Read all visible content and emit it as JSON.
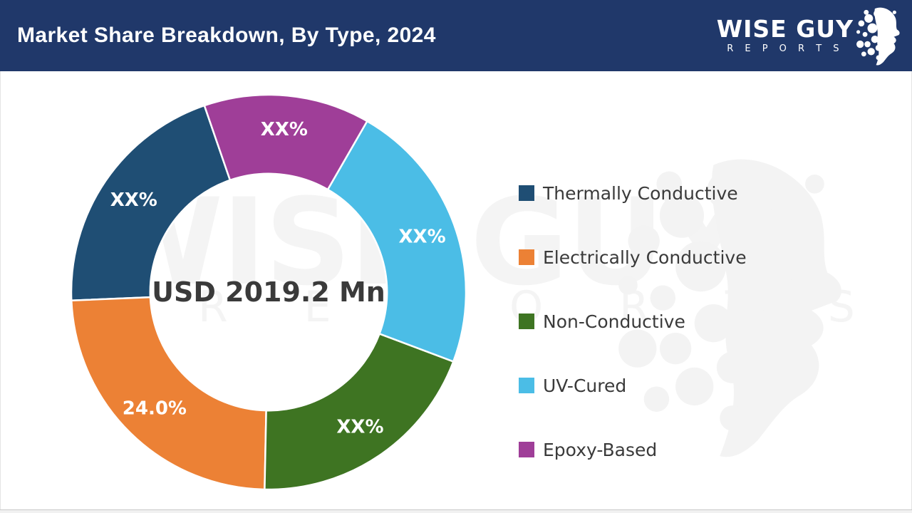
{
  "header": {
    "title": "Market Share Breakdown, By Type, 2024",
    "background_color": "#20386A",
    "logo": {
      "line1": "WISE GUY",
      "line2": "R E P O R T S",
      "icon": "face-dots-icon"
    }
  },
  "watermark": {
    "line1": "WISE GUY",
    "line2": "R E P O R T S",
    "icon": "face-dots-icon",
    "color": "#F4F4F4"
  },
  "chart_data": {
    "type": "pie",
    "subtype": "donut",
    "title": "Market Share Breakdown, By Type, 2024",
    "center_label": "USD 2019.2 Mn",
    "unit": "percent share",
    "start_angle_deg": 109,
    "direction": "counterclockwise",
    "inner_radius_ratio": 0.6,
    "legend_position": "right",
    "label_note": "all slice labels masked as XX% except Electrically Conductive which shows 24.0%",
    "segments": [
      {
        "label": "Thermally Conductive",
        "value_pct": 20.4,
        "displayed_label": "XX%",
        "color": "#1F4E74"
      },
      {
        "label": "Electrically Conductive",
        "value_pct": 24.0,
        "displayed_label": "24.0%",
        "color": "#EC8135"
      },
      {
        "label": "Non-Conductive",
        "value_pct": 19.6,
        "displayed_label": "XX%",
        "color": "#3E7422"
      },
      {
        "label": "UV-Cured",
        "value_pct": 22.4,
        "displayed_label": "XX%",
        "color": "#4BBDE6"
      },
      {
        "label": "Epoxy-Based",
        "value_pct": 13.6,
        "displayed_label": "XX%",
        "color": "#9F3E98"
      }
    ]
  }
}
